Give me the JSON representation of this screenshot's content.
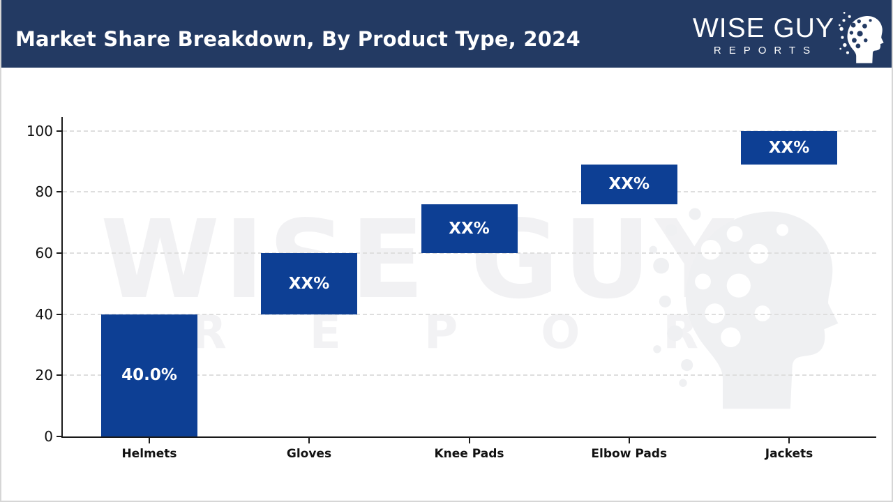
{
  "page": {
    "background": "#ffffff",
    "border_color": "#d6d6d6"
  },
  "header": {
    "background": "#233a63",
    "title": "Market Share Breakdown, By Product Type, 2024",
    "title_color": "#ffffff",
    "logo": {
      "name": "WISE GUY",
      "sub": "REPORTS"
    }
  },
  "watermark": {
    "line1": "WISE GUY",
    "line2": "R E P O R T S"
  },
  "chart_data": {
    "type": "bar",
    "subtype": "waterfall",
    "title": "Market Share Breakdown, By Product Type, 2024",
    "categories": [
      "Helmets",
      "Gloves",
      "Knee Pads",
      "Elbow Pads",
      "Jackets"
    ],
    "segments": [
      {
        "category": "Helmets",
        "start": 0,
        "end": 40,
        "label": "40.0%"
      },
      {
        "category": "Gloves",
        "start": 40,
        "end": 60,
        "label": "XX%"
      },
      {
        "category": "Knee Pads",
        "start": 60,
        "end": 76,
        "label": "XX%"
      },
      {
        "category": "Elbow Pads",
        "start": 76,
        "end": 89,
        "label": "XX%"
      },
      {
        "category": "Jackets",
        "start": 89,
        "end": 100,
        "label": "XX%"
      }
    ],
    "yticks": [
      0,
      20,
      40,
      60,
      80,
      100
    ],
    "ylim": [
      0,
      105
    ],
    "grid": "horizontal-dashed",
    "bar_color": "#0d3f94",
    "axis_color": "#1a1a1a",
    "gridline_color": "#dedede",
    "legend": "none"
  }
}
